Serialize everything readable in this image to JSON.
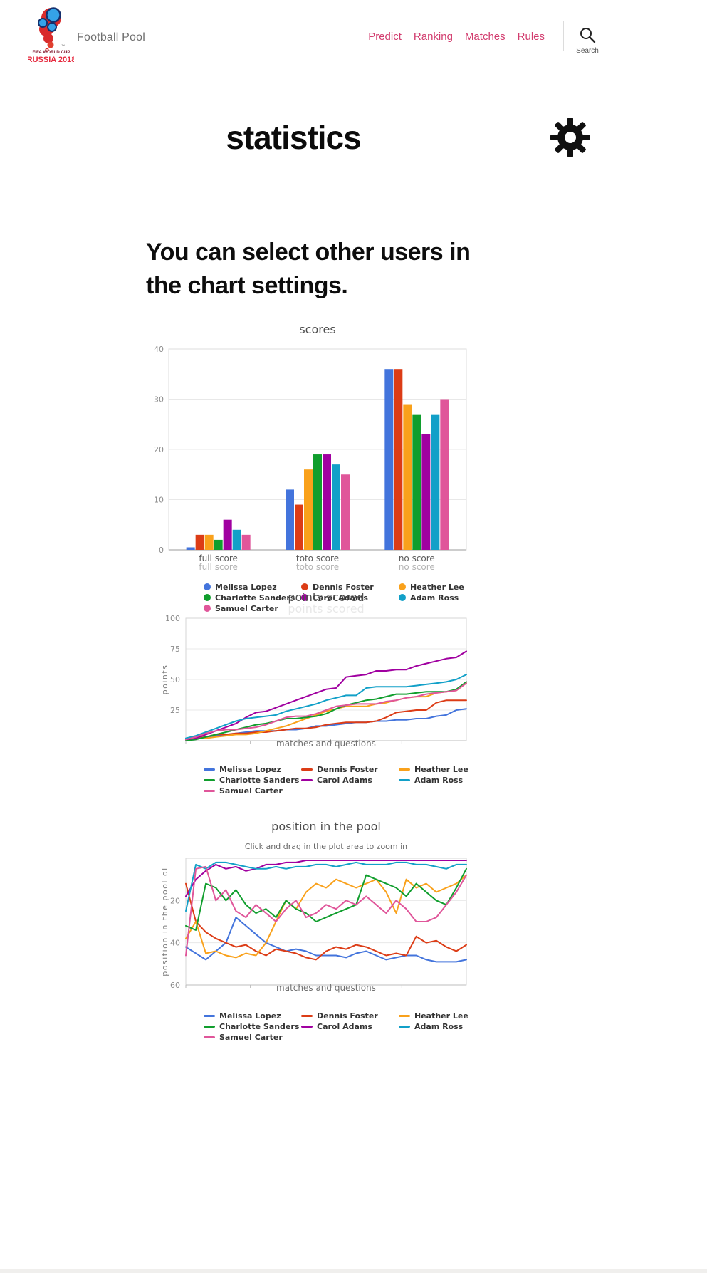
{
  "header": {
    "site_title": "Football Pool",
    "logo": {
      "line1": "FIFA WORLD CUP",
      "line2": "RUSSIA 2018",
      "tm": "™"
    },
    "nav": [
      "Predict",
      "Ranking",
      "Matches",
      "Rules"
    ],
    "search_label": "Search"
  },
  "page": {
    "title": "statistics",
    "intro": "You can select other users in the chart settings."
  },
  "users": [
    {
      "name": "Melissa Lopez",
      "color": "#4374dc"
    },
    {
      "name": "Dennis Foster",
      "color": "#dc3c16"
    },
    {
      "name": "Heather Lee",
      "color": "#f9a11b"
    },
    {
      "name": "Charlotte Sanders",
      "color": "#109e2d"
    },
    {
      "name": "Carol Adams",
      "color": "#a000a0"
    },
    {
      "name": "Adam Ross",
      "color": "#12a0c8"
    },
    {
      "name": "Samuel Carter",
      "color": "#e0569a"
    }
  ],
  "chart_data": [
    {
      "type": "bar",
      "title": "scores",
      "categories": [
        "full score",
        "toto score",
        "no score"
      ],
      "series": [
        {
          "name": "Melissa Lopez",
          "values": [
            0.5,
            12,
            36
          ]
        },
        {
          "name": "Dennis Foster",
          "values": [
            3,
            9,
            36
          ]
        },
        {
          "name": "Heather Lee",
          "values": [
            3,
            16,
            29
          ]
        },
        {
          "name": "Charlotte Sanders",
          "values": [
            2,
            19,
            27
          ]
        },
        {
          "name": "Carol Adams",
          "values": [
            6,
            19,
            23
          ]
        },
        {
          "name": "Adam Ross",
          "values": [
            4,
            17,
            27
          ]
        },
        {
          "name": "Samuel Carter",
          "values": [
            3,
            15,
            30
          ]
        }
      ],
      "xlabel": "",
      "ylabel": "",
      "ylim": [
        0,
        40
      ],
      "yticks": [
        0,
        10,
        20,
        30,
        40
      ],
      "legend_marker": "circle",
      "grid": true
    },
    {
      "type": "line",
      "title": "points scored",
      "xlabel": "matches and questions",
      "ylabel": "points",
      "ylim": [
        0,
        100
      ],
      "yticks": [
        25,
        50,
        75,
        100
      ],
      "legend_marker": "line",
      "grid": true,
      "series": [
        {
          "name": "Melissa Lopez",
          "values": [
            1,
            2,
            3,
            4,
            5,
            6,
            7,
            8,
            8,
            8,
            9,
            9,
            10,
            12,
            12,
            13,
            14,
            15,
            15,
            16,
            16,
            17,
            17,
            18,
            18,
            20,
            21,
            25,
            26
          ]
        },
        {
          "name": "Dennis Foster",
          "values": [
            1,
            2,
            3,
            5,
            5,
            6,
            6,
            7,
            7,
            8,
            9,
            10,
            10,
            11,
            13,
            14,
            15,
            15,
            15,
            16,
            19,
            23,
            24,
            25,
            25,
            31,
            33,
            33,
            33
          ]
        },
        {
          "name": "Heather Lee",
          "values": [
            1,
            2,
            2,
            3,
            4,
            5,
            5,
            6,
            8,
            10,
            12,
            15,
            18,
            21,
            24,
            26,
            28,
            28,
            28,
            30,
            31,
            33,
            35,
            36,
            36,
            39,
            40,
            41,
            47
          ]
        },
        {
          "name": "Charlotte Sanders",
          "values": [
            0,
            1,
            3,
            5,
            7,
            9,
            11,
            13,
            14,
            16,
            18,
            18,
            19,
            20,
            22,
            26,
            29,
            31,
            33,
            34,
            36,
            38,
            38,
            39,
            40,
            40,
            40,
            42,
            48
          ]
        },
        {
          "name": "Carol Adams",
          "values": [
            1,
            2,
            5,
            8,
            11,
            14,
            19,
            23,
            24,
            27,
            30,
            33,
            36,
            39,
            42,
            43,
            52,
            53,
            54,
            57,
            57,
            58,
            58,
            61,
            63,
            65,
            67,
            68,
            73
          ]
        },
        {
          "name": "Adam Ross",
          "values": [
            2,
            4,
            7,
            10,
            13,
            16,
            18,
            19,
            20,
            21,
            24,
            26,
            28,
            30,
            33,
            35,
            37,
            37,
            43,
            44,
            44,
            44,
            44,
            45,
            46,
            47,
            48,
            50,
            54
          ]
        },
        {
          "name": "Samuel Carter",
          "values": [
            1,
            3,
            6,
            8,
            9,
            9,
            10,
            11,
            13,
            16,
            19,
            20,
            20,
            22,
            25,
            28,
            29,
            30,
            30,
            30,
            32,
            33,
            35,
            36,
            38,
            39,
            40,
            41,
            47
          ]
        }
      ]
    },
    {
      "type": "line",
      "title": "position in the pool",
      "subtitle": "Click and drag in the plot area to zoom in",
      "xlabel": "matches and questions",
      "ylabel": "position in the pool ol",
      "ylim": [
        0,
        60
      ],
      "yticks": [
        20,
        40,
        60
      ],
      "inverted_y": true,
      "legend_marker": "line",
      "grid": true,
      "series": [
        {
          "name": "Melissa Lopez",
          "values": [
            42,
            45,
            48,
            44,
            40,
            28,
            32,
            36,
            40,
            42,
            44,
            43,
            44,
            46,
            46,
            46,
            47,
            45,
            44,
            46,
            48,
            47,
            46,
            46,
            48,
            49,
            49,
            49,
            48
          ]
        },
        {
          "name": "Dennis Foster",
          "values": [
            12,
            30,
            35,
            38,
            40,
            42,
            41,
            44,
            46,
            43,
            44,
            45,
            47,
            48,
            44,
            42,
            43,
            41,
            42,
            44,
            46,
            45,
            46,
            37,
            40,
            39,
            42,
            44,
            41
          ]
        },
        {
          "name": "Heather Lee",
          "values": [
            38,
            30,
            45,
            44,
            46,
            47,
            45,
            46,
            40,
            30,
            20,
            24,
            16,
            12,
            14,
            10,
            12,
            14,
            12,
            10,
            16,
            26,
            10,
            14,
            12,
            16,
            14,
            12,
            8
          ]
        },
        {
          "name": "Charlotte Sanders",
          "values": [
            32,
            34,
            12,
            14,
            20,
            15,
            22,
            26,
            24,
            28,
            20,
            24,
            26,
            30,
            28,
            26,
            24,
            22,
            8,
            10,
            12,
            14,
            18,
            12,
            16,
            20,
            22,
            14,
            5
          ]
        },
        {
          "name": "Carol Adams",
          "values": [
            18,
            10,
            6,
            3,
            5,
            4,
            6,
            5,
            3,
            3,
            2,
            2,
            1,
            1,
            1,
            1,
            1,
            1,
            1,
            1,
            1,
            1,
            1,
            1,
            1,
            1,
            1,
            1,
            1
          ]
        },
        {
          "name": "Adam Ross",
          "values": [
            25,
            3,
            5,
            2,
            2,
            3,
            4,
            5,
            5,
            4,
            5,
            4,
            4,
            3,
            3,
            4,
            3,
            2,
            3,
            3,
            3,
            2,
            2,
            3,
            3,
            4,
            5,
            3,
            3
          ]
        },
        {
          "name": "Samuel Carter",
          "values": [
            46,
            5,
            4,
            20,
            15,
            25,
            28,
            22,
            26,
            30,
            24,
            20,
            28,
            26,
            22,
            24,
            20,
            22,
            18,
            22,
            26,
            20,
            24,
            30,
            30,
            28,
            22,
            16,
            8
          ]
        }
      ]
    }
  ]
}
